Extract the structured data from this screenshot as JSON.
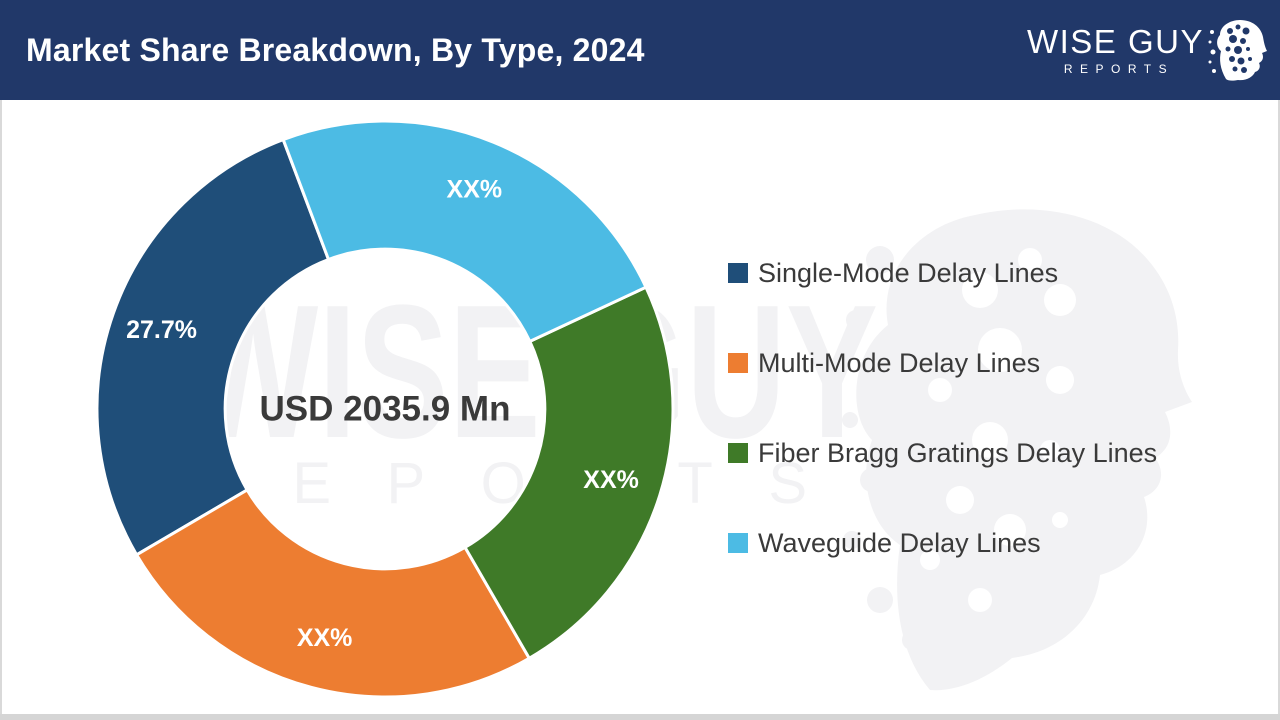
{
  "header": {
    "title": "Market Share Breakdown, By Type, 2024",
    "logo_line1": "WISE GUY",
    "logo_line2": "REPORTS"
  },
  "watermark": {
    "line1": "WISE GUY",
    "line2": "REPORTS"
  },
  "chart_data": {
    "type": "pie",
    "subtype": "donut",
    "title": "Market Share Breakdown, By Type, 2024",
    "center_label": "USD 2035.9 Mn",
    "start_angle_deg": 110.7,
    "direction": "counterclockwise",
    "inner_radius_ratio": 0.555,
    "legend_position": "right",
    "slices": [
      {
        "label": "Single-Mode Delay Lines",
        "value_pct": 27.7,
        "display": "27.7%",
        "color": "#1f4e79"
      },
      {
        "label": "Multi-Mode Delay Lines",
        "value_pct": 24.9,
        "display": "XX%",
        "color": "#ed7d31"
      },
      {
        "label": "Fiber Bragg Gratings Delay Lines",
        "value_pct": 23.6,
        "display": "XX%",
        "color": "#3f7a28"
      },
      {
        "label": "Waveguide Delay Lines",
        "value_pct": 23.8,
        "display": "XX%",
        "color": "#4cbbe4"
      }
    ]
  },
  "colors": {
    "header_bg": "#213869",
    "text_dark": "#3a3a3a",
    "label_on_slice": "#ffffff",
    "watermark": "#f2f2f4",
    "border": "#d9d9d9",
    "bottom_bar": "#d5d5d5"
  }
}
